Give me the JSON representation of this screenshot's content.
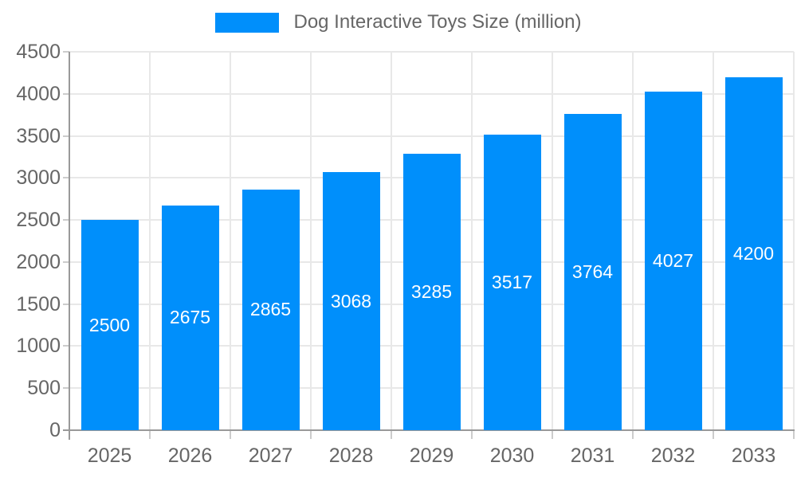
{
  "chart_data": {
    "type": "bar",
    "title": "Dog Interactive Toys Size (million)",
    "categories": [
      "2025",
      "2026",
      "2027",
      "2028",
      "2029",
      "2030",
      "2031",
      "2032",
      "2033"
    ],
    "values": [
      2500,
      2675,
      2865,
      3068,
      3285,
      3517,
      3764,
      4027,
      4200
    ],
    "value_labels": [
      "2500",
      "2675",
      "2865",
      "3068",
      "3285",
      "3517",
      "3764",
      "4027",
      "4200"
    ],
    "xlabel": "",
    "ylabel": "",
    "ylim": [
      0,
      4500
    ],
    "ytick_step": 500,
    "ytick_labels": [
      "0",
      "500",
      "1000",
      "1500",
      "2000",
      "2500",
      "3000",
      "3500",
      "4000",
      "4500"
    ],
    "legend_position": "top",
    "grid": true,
    "value_label_position": "inside-center",
    "colors": {
      "bar": "#008FFB",
      "legend_text": "#666666",
      "axis_label": "#666666",
      "grid_line": "#e8e8e8",
      "axis_line": "#999999",
      "tick_mark": "#cccccc",
      "value_label": "#ffffff",
      "background": "#ffffff"
    }
  }
}
